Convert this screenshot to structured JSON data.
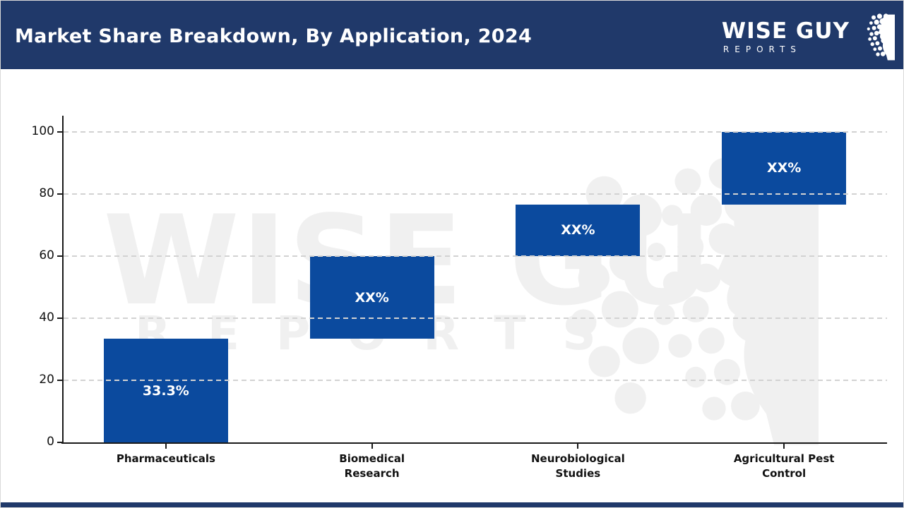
{
  "header": {
    "title": "Market Share Breakdown, By Application, 2024",
    "logo": {
      "wordmark": "WISE GUY",
      "subtext": "REPORTS"
    }
  },
  "watermark": {
    "line1": "WISE GU",
    "line2": "REPORTS"
  },
  "colors": {
    "header_bg": "#20396a",
    "footer_bg": "#20396a",
    "bar": "#0b4a9e",
    "grid": "#d2d2d2",
    "axis": "#1a1a1a",
    "bar_label": "#ffffff",
    "watermark": "#f0f0f0"
  },
  "chart_data": {
    "type": "bar",
    "subtype": "waterfall",
    "title": "Market Share Breakdown, By Application, 2024",
    "categories": [
      "Pharmaceuticals",
      "Biomedical Research",
      "Neurobiological Studies",
      "Agricultural Pest Control"
    ],
    "category_label_lines": [
      [
        "Pharmaceuticals"
      ],
      [
        "Biomedical",
        "Research"
      ],
      [
        "Neurobiological",
        "Studies"
      ],
      [
        "Agricultural Pest",
        "Control"
      ]
    ],
    "bars": [
      {
        "category": "Pharmaceuticals",
        "label": "33.3%",
        "start": 0,
        "end": 33.3
      },
      {
        "category": "Biomedical Research",
        "label": "XX%",
        "start": 33.3,
        "end": 60
      },
      {
        "category": "Neurobiological Studies",
        "label": "XX%",
        "start": 60,
        "end": 76.6
      },
      {
        "category": "Agricultural Pest Control",
        "label": "XX%",
        "start": 76.6,
        "end": 100
      }
    ],
    "xlabel": "",
    "ylabel": "",
    "ylim": [
      0,
      100
    ],
    "yticks": [
      0,
      20,
      40,
      60,
      80,
      100
    ],
    "grid": "horizontal-dashed",
    "legend": "none"
  }
}
